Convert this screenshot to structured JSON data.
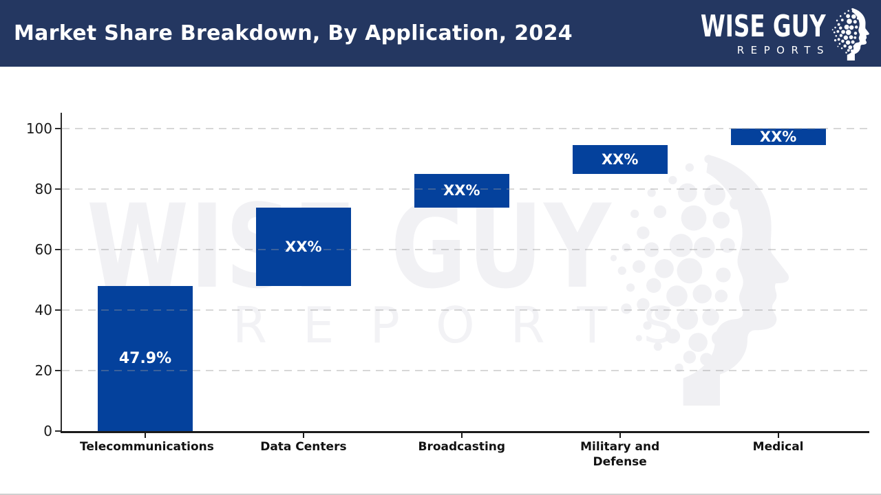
{
  "header": {
    "title": "Market Share Breakdown, By Application, 2024",
    "logo": {
      "line1": "WISE GUY",
      "line2": "REPORTS"
    }
  },
  "watermark": {
    "line1": "WISE GUY",
    "line2": "REPORTS"
  },
  "colors": {
    "header_bg": "#243761",
    "bar": "#04419c",
    "bar_label_text": "#ffffff",
    "axis_text": "#1a1a1a",
    "gridline": "#d9d9d9",
    "watermark": "#f1f1f4"
  },
  "chart_data": {
    "type": "bar",
    "subtype": "waterfall",
    "title": "Market Share Breakdown, By Application, 2024",
    "categories": [
      "Telecommunications",
      "Data Centers",
      "Broadcasting",
      "Military and\nDefense",
      "Medical"
    ],
    "values": [
      47.9,
      26.0,
      11.1,
      9.6,
      5.4
    ],
    "segments": [
      {
        "category": "Telecommunications",
        "start": 0,
        "end": 47.9,
        "label": "47.9%"
      },
      {
        "category": "Data Centers",
        "start": 47.9,
        "end": 73.9,
        "label": "XX%"
      },
      {
        "category": "Broadcasting",
        "start": 73.9,
        "end": 85.0,
        "label": "XX%"
      },
      {
        "category": "Military and Defense",
        "start": 85.0,
        "end": 94.6,
        "label": "XX%"
      },
      {
        "category": "Medical",
        "start": 94.6,
        "end": 100.0,
        "label": "XX%"
      }
    ],
    "xlabel": "",
    "ylabel": "",
    "yticks": [
      0,
      20,
      40,
      60,
      80,
      100
    ],
    "ylim": [
      0,
      105
    ],
    "grid": "dashed-horizontal",
    "legend": "none"
  }
}
